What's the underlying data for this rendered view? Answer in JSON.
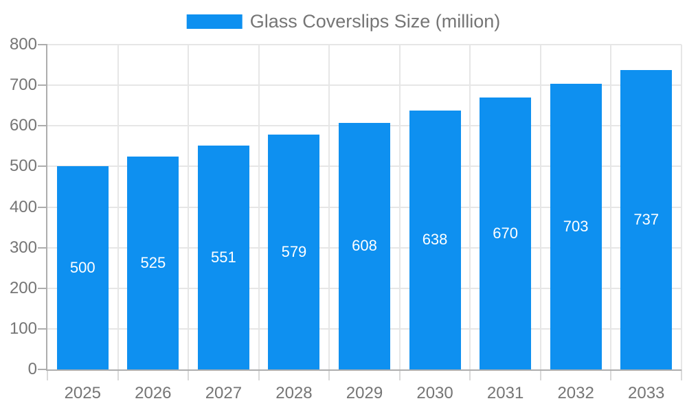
{
  "legend": {
    "label": "Glass Coverslips Size (million)"
  },
  "chart_data": {
    "type": "bar",
    "title": "Glass Coverslips Size (million)",
    "categories": [
      "2025",
      "2026",
      "2027",
      "2028",
      "2029",
      "2030",
      "2031",
      "2032",
      "2033"
    ],
    "series": [
      {
        "name": "Glass Coverslips Size (million)",
        "values": [
          500,
          525,
          551,
          579,
          608,
          638,
          670,
          703,
          737
        ]
      }
    ],
    "value_labels": [
      "500",
      "525",
      "551",
      "579",
      "608",
      "638",
      "670",
      "703",
      "737"
    ],
    "xlabel": "",
    "ylabel": "",
    "ylim": [
      0,
      800
    ],
    "y_ticks": [
      0,
      100,
      200,
      300,
      400,
      500,
      600,
      700,
      800
    ],
    "grid": true,
    "legend_position": "top-center"
  },
  "colors": {
    "bar": "#0e90f0",
    "grid": "#e6e6e6",
    "axis_line": "#adadad",
    "x_tick": "#d9d9d9",
    "axis_text": "#757575",
    "legend_text": "#757575",
    "value_label_text": "#ffffff",
    "background": "#ffffff"
  }
}
